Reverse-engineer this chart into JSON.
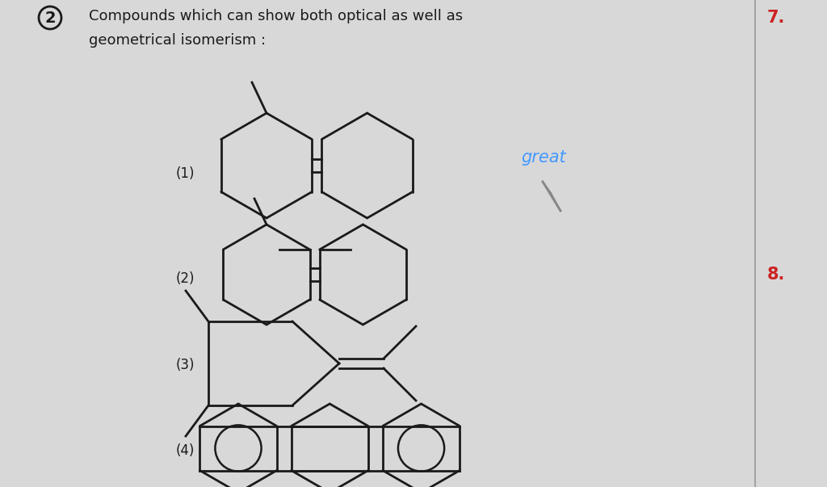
{
  "title_line1": "Compounds which can show both optical as well as",
  "title_line2": "geometrical isomerism :",
  "question_num": "2",
  "answer_label": "great",
  "answer_color": "#4499ff",
  "bg_color": "#d8d8d8",
  "labels": [
    "(1)",
    "(2)",
    "(3)",
    "(4)"
  ],
  "text_color": "#111111",
  "line_color": "#1a1a1a",
  "right_num1": "7.",
  "right_num2": "8.",
  "right_color": "#cc2222"
}
